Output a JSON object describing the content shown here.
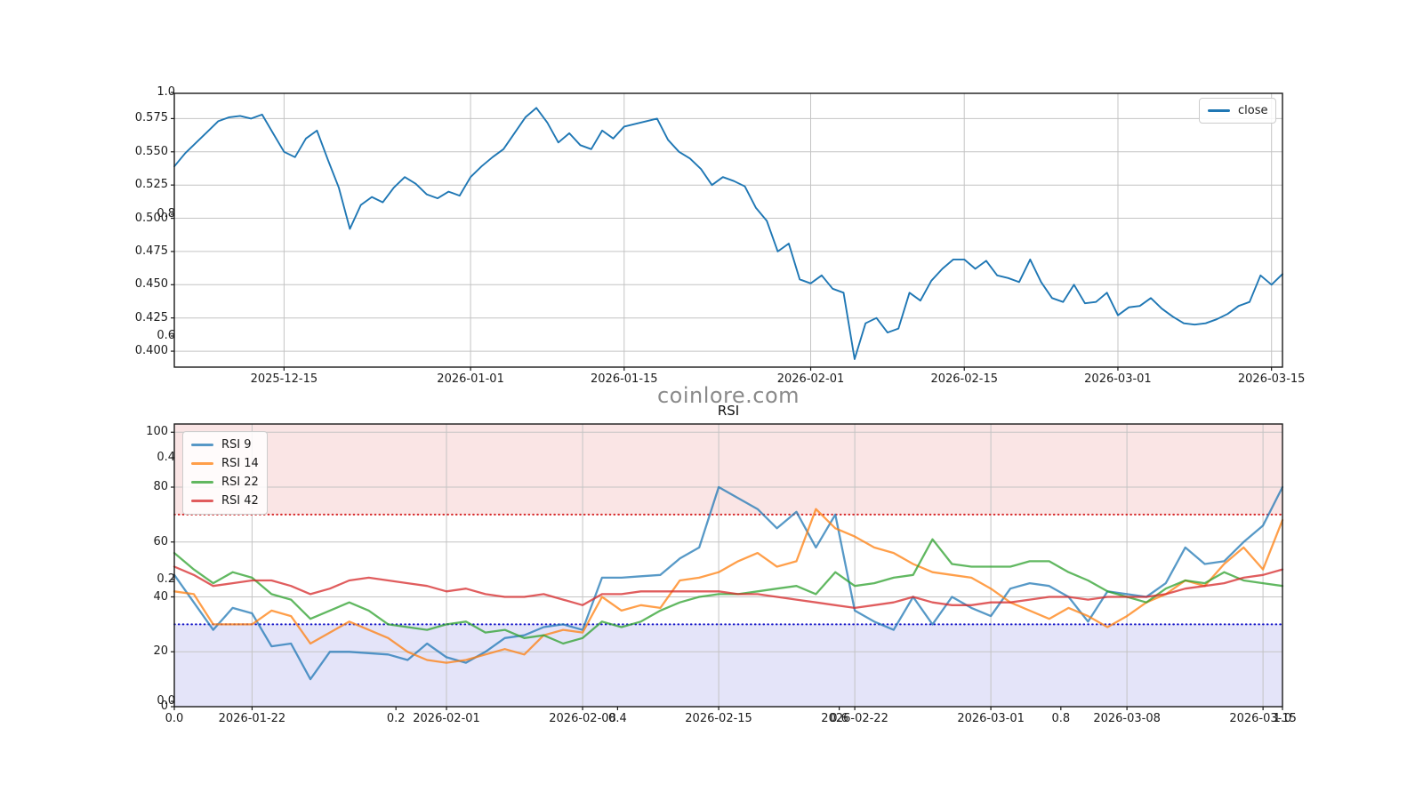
{
  "watermark": "coinlore.com",
  "colors": {
    "close": "#1f77b4",
    "rsi9": "#1f77b4",
    "rsi14": "#ff7f0e",
    "rsi22": "#2ca02c",
    "rsi42": "#d62728",
    "overbought_band": "rgba(214,39,40,0.12)",
    "oversold_band": "rgba(75,75,215,0.15)",
    "overbought_line": "#d62728",
    "oversold_line": "#1414c8",
    "grid": "#c4c4c4",
    "spine": "#1a1a1a",
    "watermark_color": "#8a8a8a"
  },
  "overlay_axis": {
    "x_tick_labels": [
      "0.0",
      "0.2",
      "0.4",
      "0.6",
      "0.8",
      "1.0"
    ],
    "y_tick_labels": [
      "1.0",
      "0.8",
      "0.6",
      "0.4",
      "0.2",
      "0.0"
    ]
  },
  "chart_data": [
    {
      "type": "line",
      "title": "",
      "x_start_date": "2025-12-05",
      "x_end_date": "2026-03-16",
      "x_tick_labels": [
        "2025-12-15",
        "2026-01-01",
        "2026-01-15",
        "2026-02-01",
        "2026-02-15",
        "2026-03-01",
        "2026-03-15"
      ],
      "x_tick_indices": [
        10,
        27,
        41,
        58,
        72,
        86,
        100
      ],
      "ylim": [
        0.388,
        0.594
      ],
      "y_tick_values": [
        0.4,
        0.425,
        0.45,
        0.475,
        0.5,
        0.525,
        0.55,
        0.575
      ],
      "y_tick_labels": [
        "0.400",
        "0.425",
        "0.450",
        "0.475",
        "0.500",
        "0.525",
        "0.550",
        "0.575"
      ],
      "grid": true,
      "legend_position": "upper right",
      "series": [
        {
          "name": "close",
          "color_key": "close",
          "width": 1.9,
          "opacity": 1,
          "values": [
            0.539,
            0.549,
            0.557,
            0.565,
            0.573,
            0.576,
            0.577,
            0.575,
            0.578,
            0.564,
            0.55,
            0.546,
            0.56,
            0.566,
            0.544,
            0.523,
            0.492,
            0.51,
            0.516,
            0.512,
            0.523,
            0.531,
            0.526,
            0.518,
            0.515,
            0.52,
            0.517,
            0.531,
            0.539,
            0.546,
            0.552,
            0.564,
            0.576,
            0.583,
            0.572,
            0.557,
            0.564,
            0.555,
            0.552,
            0.566,
            0.56,
            0.569,
            0.571,
            0.573,
            0.575,
            0.559,
            0.55,
            0.545,
            0.537,
            0.525,
            0.531,
            0.528,
            0.524,
            0.508,
            0.498,
            0.475,
            0.481,
            0.454,
            0.451,
            0.457,
            0.447,
            0.444,
            0.394,
            0.421,
            0.425,
            0.414,
            0.417,
            0.444,
            0.438,
            0.453,
            0.462,
            0.469,
            0.469,
            0.462,
            0.468,
            0.457,
            0.455,
            0.452,
            0.469,
            0.452,
            0.44,
            0.437,
            0.45,
            0.436,
            0.437,
            0.444,
            0.427,
            0.433,
            0.434,
            0.44,
            0.432,
            0.426,
            0.421,
            0.42,
            0.421,
            0.424,
            0.428,
            0.434,
            0.437,
            0.457,
            0.45,
            0.458
          ]
        }
      ]
    },
    {
      "type": "line",
      "title": "RSI",
      "x_start_date": "2026-01-18",
      "x_end_date": "2026-03-16",
      "x_tick_labels": [
        "2026-01-22",
        "2026-02-01",
        "2026-02-08",
        "2026-02-15",
        "2026-02-22",
        "2026-03-01",
        "2026-03-08",
        "2026-03-15"
      ],
      "x_tick_indices": [
        4,
        14,
        21,
        28,
        35,
        42,
        49,
        56
      ],
      "ylim": [
        0,
        103
      ],
      "y_tick_values": [
        0,
        20,
        40,
        60,
        80,
        100
      ],
      "y_tick_labels": [
        "0",
        "20",
        "40",
        "60",
        "80",
        "100"
      ],
      "grid": true,
      "legend_position": "upper left",
      "levels": {
        "overbought": 70,
        "oversold": 30
      },
      "bands": [
        {
          "from": 70,
          "to": 103,
          "color_key": "overbought_band"
        },
        {
          "from": 0,
          "to": 30,
          "color_key": "oversold_band"
        }
      ],
      "series": [
        {
          "name": "RSI 9",
          "color_key": "rsi9",
          "width": 2.3,
          "opacity": 0.75,
          "values": [
            48,
            38,
            28,
            36,
            34,
            22,
            23,
            10,
            20,
            20,
            19.5,
            19,
            17,
            23,
            18,
            16,
            20,
            25,
            26,
            29,
            30,
            28,
            47,
            47,
            47.5,
            48,
            54,
            58,
            80,
            76,
            72,
            65,
            71,
            58,
            70,
            35,
            31,
            28,
            40,
            30,
            40,
            36,
            33,
            43,
            45,
            44,
            40,
            31,
            42,
            41,
            40,
            45,
            58,
            52,
            53,
            60,
            66,
            80
          ]
        },
        {
          "name": "RSI 14",
          "color_key": "rsi14",
          "width": 2.3,
          "opacity": 0.75,
          "values": [
            42,
            41,
            30,
            30,
            30,
            35,
            33,
            23,
            27,
            31,
            28,
            25,
            20,
            17,
            16,
            17,
            19,
            21,
            19,
            26,
            28,
            27,
            40,
            35,
            37,
            36,
            46,
            47,
            49,
            53,
            56,
            51,
            53,
            72,
            65,
            62,
            58,
            56,
            52,
            49,
            48,
            47,
            43,
            38,
            35,
            32,
            36,
            33,
            29,
            33,
            38,
            41,
            46,
            44,
            52,
            58,
            50,
            68
          ]
        },
        {
          "name": "RSI 22",
          "color_key": "rsi22",
          "width": 2.3,
          "opacity": 0.75,
          "values": [
            56,
            50,
            45,
            49,
            47,
            41,
            39,
            32,
            35,
            38,
            35,
            30,
            29,
            28,
            30,
            31,
            27,
            28,
            25,
            26,
            23,
            25,
            31,
            29,
            31,
            35,
            38,
            40,
            41,
            41,
            42,
            43,
            44,
            41,
            49,
            44,
            45,
            47,
            48,
            61,
            52,
            51,
            51,
            51,
            53,
            53,
            49,
            46,
            42,
            40,
            38,
            43,
            46,
            45,
            49,
            46,
            45,
            44
          ]
        },
        {
          "name": "RSI 42",
          "color_key": "rsi42",
          "width": 2.3,
          "opacity": 0.75,
          "values": [
            51,
            48,
            44,
            45,
            46,
            46,
            44,
            41,
            43,
            46,
            47,
            46,
            45,
            44,
            42,
            43,
            41,
            40,
            40,
            41,
            39,
            37,
            41,
            41,
            42,
            42,
            42,
            42,
            42,
            41,
            41,
            40,
            39,
            38,
            37,
            36,
            37,
            38,
            40,
            38,
            37,
            37,
            38,
            38,
            39,
            40,
            40,
            39,
            40,
            40,
            40,
            41,
            43,
            44,
            45,
            47,
            48,
            50
          ]
        }
      ]
    }
  ]
}
